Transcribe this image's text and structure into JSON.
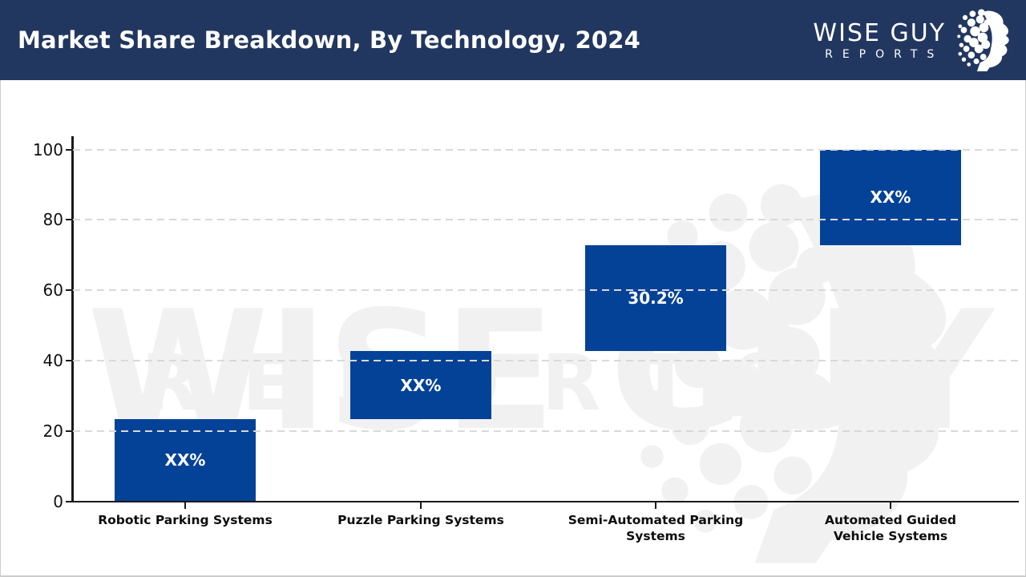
{
  "header": {
    "title": "Market Share Breakdown, By Technology, 2024",
    "logo": {
      "wordmark": "WISE GUY",
      "subtext": "REPORTS"
    }
  },
  "watermark": {
    "wordmark": "WISE GUY",
    "subtext": "REPORTS"
  },
  "chart_data": {
    "type": "bar",
    "subtype": "floating-waterfall",
    "title": "Market Share Breakdown, By Technology, 2024",
    "categories": [
      "Robotic Parking Systems",
      "Puzzle Parking Systems",
      "Semi-Automated Parking Systems",
      "Automated Guided Vehicle Systems"
    ],
    "series": [
      {
        "name": "Market share (%)",
        "segments": [
          {
            "category": "Robotic Parking Systems",
            "base": 0,
            "top": 23.4,
            "label": "XX%"
          },
          {
            "category": "Puzzle Parking Systems",
            "base": 23.4,
            "top": 42.6,
            "label": "XX%"
          },
          {
            "category": "Semi-Automated Parking Systems",
            "base": 42.6,
            "top": 72.8,
            "label": "30.2%"
          },
          {
            "category": "Automated Guided Vehicle Systems",
            "base": 72.8,
            "top": 100,
            "label": "XX%"
          }
        ]
      }
    ],
    "xlabel": "",
    "ylabel": "",
    "yticks": [
      0,
      20,
      40,
      60,
      80,
      100
    ],
    "ylim": [
      0,
      105
    ],
    "grid": "horizontal dashed",
    "legend": "none",
    "colors": {
      "bar": "#044298",
      "bar_label": "#ffffff",
      "axis": "#1a1a1a",
      "gridline": "#d9d9d9",
      "header_bg": "#223760",
      "watermark": "#f1f1f2"
    }
  }
}
